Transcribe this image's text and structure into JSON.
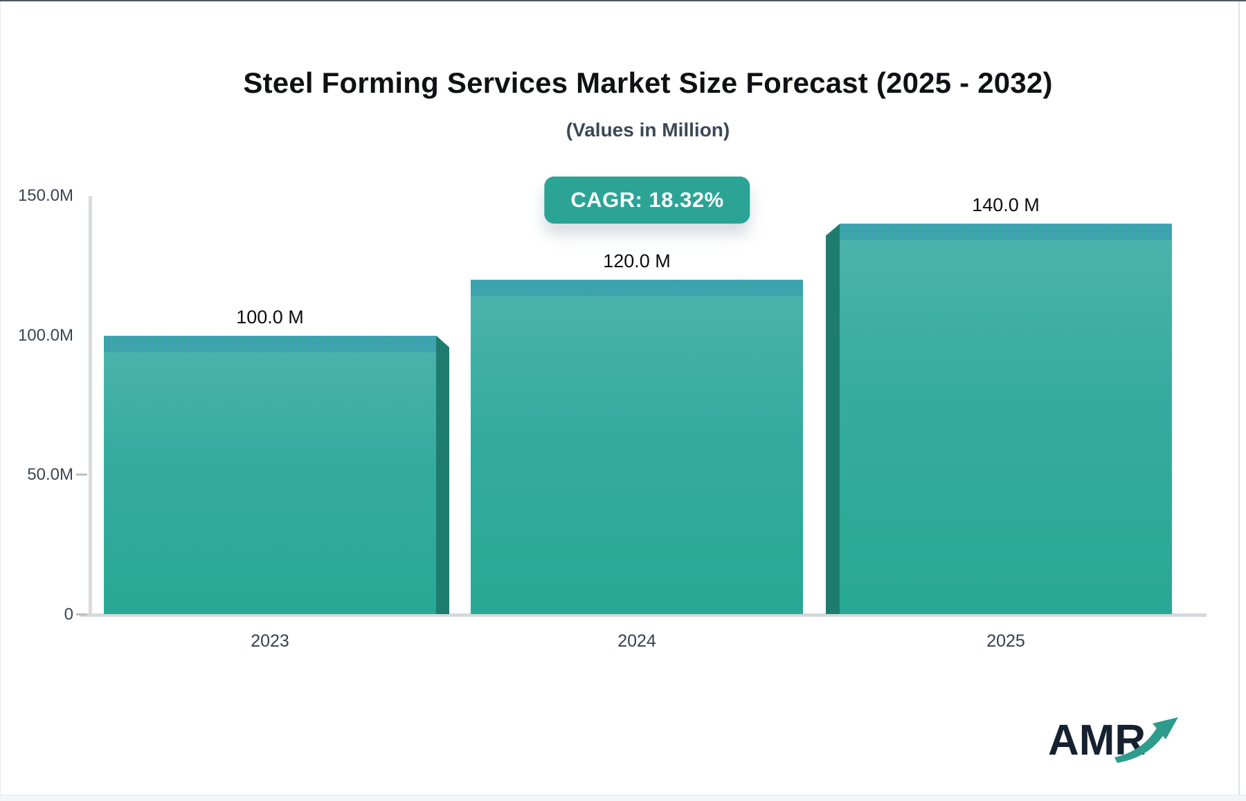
{
  "header": {
    "title": "Steel Forming Services Market Size Forecast (2025 - 2032)",
    "subtitle": "(Values in Million)"
  },
  "cagr_badge": {
    "label": "CAGR: 18.32%"
  },
  "branding": {
    "logo_text": "AMR"
  },
  "chart_data": {
    "type": "bar",
    "title": "Steel Forming Services Market Size Forecast (2025 - 2032)",
    "subtitle": "(Values in Million)",
    "unit": "Million",
    "categories": [
      "2023",
      "2024",
      "2025"
    ],
    "values": [
      100.0,
      120.0,
      140.0
    ],
    "value_labels": [
      "100.0 M",
      "120.0 M",
      "140.0 M"
    ],
    "cagr_annotation": "CAGR: 18.32%",
    "ylim": [
      0,
      150
    ],
    "y_ticks": [
      {
        "value": 150,
        "label": "150.0M"
      },
      {
        "value": 100,
        "label": "100.0M"
      },
      {
        "value": 50,
        "label": "50.0M"
      },
      {
        "value": 0,
        "label": "0"
      }
    ],
    "y_tick_dash_values": [
      50,
      0
    ],
    "grid": false,
    "legend": false,
    "layout": {
      "bar_depth_sides": [
        "right",
        "none",
        "left"
      ]
    },
    "colors": {
      "bar_gradient_top": "#4db4ab",
      "bar_gradient_bottom": "#29a895",
      "bar_cap_band": "#4ba1bd",
      "bar_depth_side": "#1e7c6e",
      "badge_bg": "#2ba496",
      "axis_line": "#d8dbe0",
      "logo_text": "#16212f",
      "logo_arrow": "#2e9c8d"
    }
  }
}
